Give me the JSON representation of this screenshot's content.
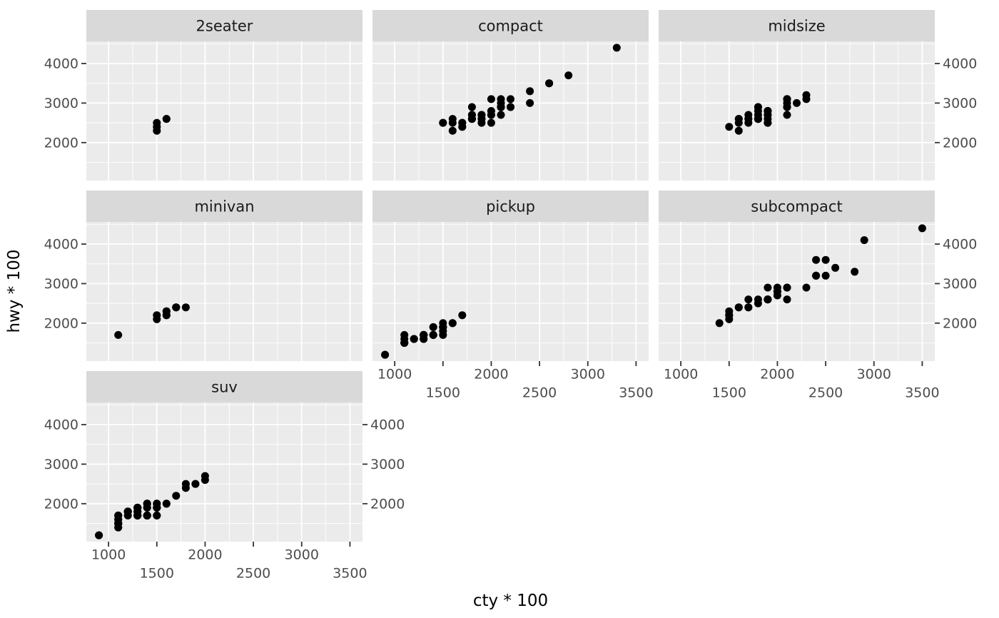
{
  "chart_data": {
    "type": "scatter",
    "title": "",
    "xlabel": "cty * 100",
    "ylabel": "hwy * 100",
    "x_domain": [
      770,
      3630
    ],
    "y_domain": [
      1040,
      4560
    ],
    "x_major_ticks": [
      1000,
      1500,
      2000,
      2500,
      3000,
      3500
    ],
    "x_minor_ticks": [
      1250,
      1750,
      2250,
      2750,
      3250
    ],
    "y_major_ticks": [
      2000,
      3000,
      4000
    ],
    "y_minor_ticks": [
      1500,
      2500,
      3500,
      4500
    ],
    "x_tick_rows": {
      "upper": [
        1000,
        2000,
        3000
      ],
      "lower": [
        1500,
        2500,
        3500
      ]
    },
    "grid": true,
    "legend": "none",
    "point_color": "#000000",
    "panel_bg": "#EBEBEB",
    "strip_bg": "#D9D9D9",
    "grid_color": "#FFFFFF",
    "tick_color": "#333333",
    "tick_label_color": "#4D4D4D",
    "strip_label_color": "#1A1A1A",
    "facets": [
      {
        "label": "2seater",
        "points": [
          [
            1600,
            2600
          ],
          [
            1500,
            2300
          ],
          [
            1600,
            2600
          ],
          [
            1500,
            2500
          ],
          [
            1500,
            2400
          ]
        ]
      },
      {
        "label": "compact",
        "points": [
          [
            1800,
            2900
          ],
          [
            2100,
            2900
          ],
          [
            2000,
            3100
          ],
          [
            2100,
            3000
          ],
          [
            1600,
            2600
          ],
          [
            1800,
            2600
          ],
          [
            1800,
            2700
          ],
          [
            1800,
            2600
          ],
          [
            1600,
            2500
          ],
          [
            2000,
            2800
          ],
          [
            1900,
            2700
          ],
          [
            1500,
            2500
          ],
          [
            1700,
            2500
          ],
          [
            1700,
            2500
          ],
          [
            1500,
            2500
          ],
          [
            2100,
            2700
          ],
          [
            2100,
            2900
          ],
          [
            2100,
            3100
          ],
          [
            2200,
            3100
          ],
          [
            1800,
            2600
          ],
          [
            1800,
            2600
          ],
          [
            1800,
            2700
          ],
          [
            2400,
            3000
          ],
          [
            2400,
            3300
          ],
          [
            2600,
            3500
          ],
          [
            2800,
            3700
          ],
          [
            2600,
            3500
          ],
          [
            2100,
            2900
          ],
          [
            1900,
            2600
          ],
          [
            2100,
            2900
          ],
          [
            2200,
            2900
          ],
          [
            1700,
            2400
          ],
          [
            3300,
            4400
          ],
          [
            2100,
            2900
          ],
          [
            1900,
            2600
          ],
          [
            2200,
            2900
          ],
          [
            2100,
            2900
          ],
          [
            2100,
            2900
          ],
          [
            2100,
            2900
          ],
          [
            1700,
            2400
          ],
          [
            1600,
            2300
          ],
          [
            2000,
            2500
          ],
          [
            2000,
            2700
          ],
          [
            1900,
            2500
          ],
          [
            2000,
            2700
          ],
          [
            2100,
            2900
          ],
          [
            1900,
            2700
          ]
        ]
      },
      {
        "label": "midsize",
        "points": [
          [
            1500,
            2400
          ],
          [
            1700,
            2500
          ],
          [
            1600,
            2300
          ],
          [
            1900,
            2700
          ],
          [
            2200,
            3000
          ],
          [
            1800,
            2600
          ],
          [
            1800,
            2900
          ],
          [
            1700,
            2600
          ],
          [
            1800,
            2600
          ],
          [
            1800,
            2700
          ],
          [
            2100,
            3000
          ],
          [
            2100,
            3100
          ],
          [
            1800,
            2600
          ],
          [
            1800,
            2600
          ],
          [
            1900,
            2800
          ],
          [
            2300,
            3100
          ],
          [
            2300,
            3200
          ],
          [
            1900,
            2700
          ],
          [
            1900,
            2600
          ],
          [
            1800,
            2600
          ],
          [
            1900,
            2500
          ],
          [
            1900,
            2500
          ],
          [
            1800,
            2600
          ],
          [
            1600,
            2600
          ],
          [
            1700,
            2700
          ],
          [
            1800,
            2800
          ],
          [
            1600,
            2500
          ],
          [
            2100,
            2900
          ],
          [
            2100,
            2700
          ],
          [
            2100,
            3100
          ],
          [
            2100,
            3100
          ],
          [
            1800,
            2600
          ],
          [
            1800,
            2600
          ],
          [
            1900,
            2800
          ],
          [
            2100,
            2900
          ],
          [
            1800,
            2900
          ],
          [
            1900,
            2800
          ],
          [
            2100,
            2900
          ],
          [
            1600,
            2600
          ],
          [
            1800,
            2600
          ],
          [
            1700,
            2600
          ]
        ]
      },
      {
        "label": "minivan",
        "points": [
          [
            1800,
            2400
          ],
          [
            1700,
            2400
          ],
          [
            1600,
            2200
          ],
          [
            1600,
            2200
          ],
          [
            1700,
            2400
          ],
          [
            1700,
            2400
          ],
          [
            1100,
            1700
          ],
          [
            1500,
            2200
          ],
          [
            1500,
            2100
          ],
          [
            1600,
            2300
          ],
          [
            1600,
            2300
          ]
        ]
      },
      {
        "label": "pickup",
        "points": [
          [
            1500,
            1900
          ],
          [
            1500,
            1900
          ],
          [
            1300,
            1700
          ],
          [
            1400,
            1700
          ],
          [
            1400,
            1900
          ],
          [
            1400,
            1900
          ],
          [
            900,
            1200
          ],
          [
            1100,
            1500
          ],
          [
            1100,
            1700
          ],
          [
            1300,
            1700
          ],
          [
            1200,
            1600
          ],
          [
            1300,
            1700
          ],
          [
            1200,
            1600
          ],
          [
            900,
            1200
          ],
          [
            1100,
            1500
          ],
          [
            1100,
            1600
          ],
          [
            1300,
            1700
          ],
          [
            1100,
            1500
          ],
          [
            1200,
            1600
          ],
          [
            1400,
            1700
          ],
          [
            1400,
            1700
          ],
          [
            1300,
            1600
          ],
          [
            1300,
            1600
          ],
          [
            1300,
            1700
          ],
          [
            1100,
            1500
          ],
          [
            1300,
            1700
          ],
          [
            1500,
            2000
          ],
          [
            1600,
            2000
          ],
          [
            1700,
            2200
          ],
          [
            1500,
            1700
          ],
          [
            1500,
            1900
          ],
          [
            1500,
            1800
          ],
          [
            1600,
            2000
          ]
        ]
      },
      {
        "label": "subcompact",
        "points": [
          [
            2800,
            3300
          ],
          [
            2400,
            3200
          ],
          [
            2500,
            3200
          ],
          [
            2300,
            2900
          ],
          [
            2400,
            3200
          ],
          [
            2600,
            3400
          ],
          [
            2500,
            3600
          ],
          [
            2400,
            3600
          ],
          [
            2100,
            2900
          ],
          [
            1900,
            2600
          ],
          [
            1900,
            2900
          ],
          [
            2000,
            2800
          ],
          [
            2000,
            2700
          ],
          [
            1700,
            2400
          ],
          [
            1600,
            2400
          ],
          [
            1700,
            2400
          ],
          [
            1800,
            2600
          ],
          [
            1800,
            2500
          ],
          [
            1700,
            2600
          ],
          [
            1600,
            2400
          ],
          [
            1500,
            2100
          ],
          [
            1500,
            2200
          ],
          [
            1500,
            2300
          ],
          [
            1500,
            2200
          ],
          [
            1400,
            2000
          ],
          [
            3500,
            4400
          ],
          [
            2900,
            4100
          ],
          [
            2100,
            2900
          ],
          [
            1900,
            2600
          ],
          [
            2000,
            2800
          ],
          [
            2000,
            2900
          ],
          [
            2100,
            2600
          ],
          [
            1900,
            2600
          ],
          [
            1900,
            2600
          ],
          [
            1900,
            2600
          ]
        ]
      },
      {
        "label": "suv",
        "points": [
          [
            1400,
            2000
          ],
          [
            1100,
            1500
          ],
          [
            1400,
            2000
          ],
          [
            1300,
            1700
          ],
          [
            1200,
            1700
          ],
          [
            1400,
            1900
          ],
          [
            1100,
            1400
          ],
          [
            1100,
            1500
          ],
          [
            1400,
            1700
          ],
          [
            1300,
            1700
          ],
          [
            1300,
            1700
          ],
          [
            900,
            1200
          ],
          [
            1300,
            1700
          ],
          [
            1100,
            1600
          ],
          [
            1300,
            1800
          ],
          [
            1100,
            1500
          ],
          [
            1100,
            1700
          ],
          [
            1100,
            1700
          ],
          [
            1200,
            1800
          ],
          [
            1400,
            1700
          ],
          [
            1500,
            1900
          ],
          [
            1400,
            1700
          ],
          [
            1300,
            1900
          ],
          [
            1300,
            1900
          ],
          [
            1300,
            1700
          ],
          [
            1700,
            2200
          ],
          [
            1500,
            1900
          ],
          [
            1500,
            2000
          ],
          [
            1400,
            1700
          ],
          [
            900,
            1200
          ],
          [
            1400,
            1900
          ],
          [
            1300,
            1800
          ],
          [
            1100,
            1400
          ],
          [
            1100,
            1500
          ],
          [
            1200,
            1800
          ],
          [
            1200,
            1800
          ],
          [
            1100,
            1500
          ],
          [
            1100,
            1700
          ],
          [
            1100,
            1600
          ],
          [
            1200,
            1800
          ],
          [
            1400,
            1700
          ],
          [
            1300,
            1900
          ],
          [
            1300,
            1900
          ],
          [
            1300,
            1700
          ],
          [
            1400,
            1700
          ],
          [
            1500,
            1700
          ],
          [
            1400,
            2000
          ],
          [
            1200,
            1800
          ],
          [
            1800,
            2500
          ],
          [
            1800,
            2400
          ],
          [
            2000,
            2700
          ],
          [
            1900,
            2500
          ],
          [
            1900,
            2500
          ],
          [
            2000,
            2600
          ],
          [
            1500,
            2000
          ],
          [
            1600,
            2000
          ],
          [
            1500,
            1900
          ],
          [
            1500,
            1700
          ],
          [
            1600,
            2000
          ],
          [
            1400,
            1700
          ],
          [
            1100,
            1500
          ],
          [
            1300,
            1800
          ]
        ]
      }
    ]
  }
}
